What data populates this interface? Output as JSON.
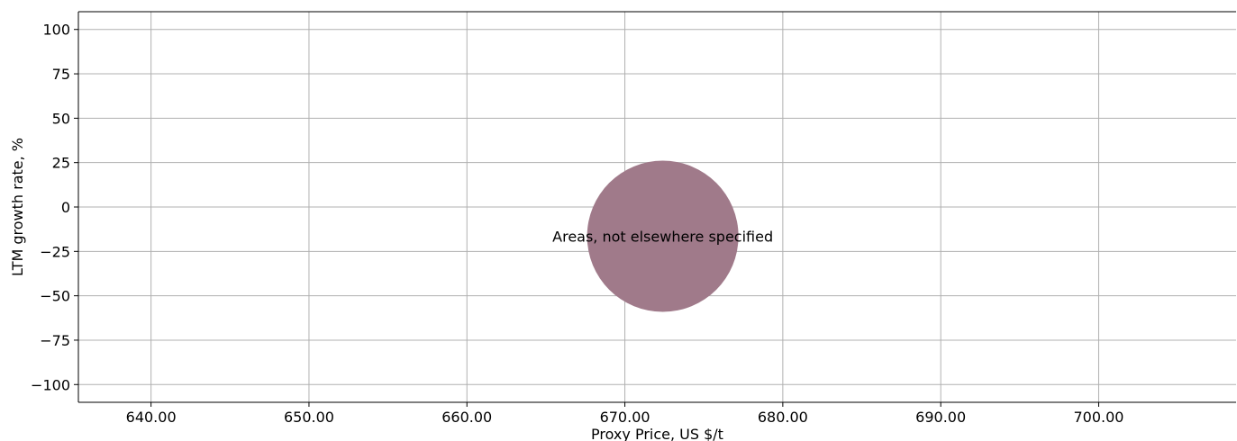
{
  "chart_data": {
    "type": "scatter",
    "title": "",
    "xlabel": "Proxy Price, US $/t",
    "ylabel": "LTM growth rate, %",
    "xlim": [
      635.4,
      708.7
    ],
    "ylim": [
      -110,
      110
    ],
    "x_ticks": [
      640,
      650,
      660,
      670,
      680,
      690,
      700
    ],
    "x_tick_labels": [
      "640.00",
      "650.00",
      "660.00",
      "670.00",
      "680.00",
      "690.00",
      "700.00"
    ],
    "y_ticks": [
      100,
      75,
      50,
      25,
      0,
      -25,
      -50,
      -75,
      -100
    ],
    "y_tick_labels": [
      "100",
      "75",
      "50",
      "25",
      "0",
      "−25",
      "−50",
      "−75",
      "−100"
    ],
    "grid": true,
    "points": [
      {
        "label": "Areas, not elsewhere specified",
        "x": 672.4,
        "y": -16.5,
        "color": "#a07a8a"
      }
    ]
  }
}
